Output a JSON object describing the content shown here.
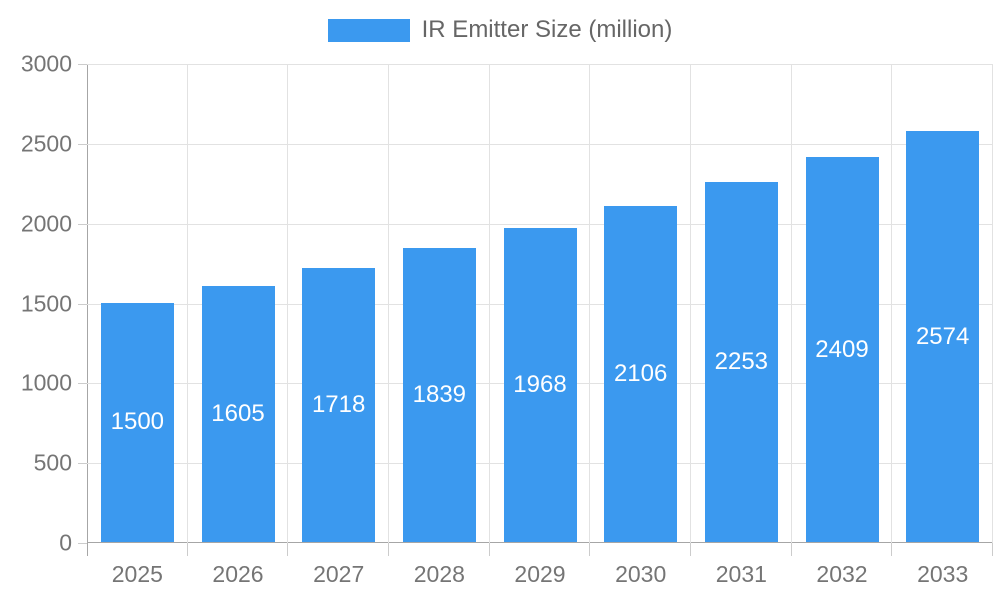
{
  "chart_data": {
    "type": "bar",
    "title": "",
    "categories": [
      "2025",
      "2026",
      "2027",
      "2028",
      "2029",
      "2030",
      "2031",
      "2032",
      "2033"
    ],
    "series": [
      {
        "name": "IR Emitter Size (million)",
        "values": [
          1500,
          1605,
          1718,
          1839,
          1968,
          2106,
          2253,
          2409,
          2574
        ]
      }
    ],
    "xlabel": "",
    "ylabel": "",
    "ylim": [
      0,
      3000
    ],
    "yticks": [
      0,
      500,
      1000,
      1500,
      2000,
      2500,
      3000
    ],
    "grid": true,
    "legend_position": "top-center",
    "value_labels": "inside-center",
    "colors": {
      "bar": "#3b99ef",
      "value_label": "#ffffff",
      "axis_text": "#757575",
      "legend_text": "#666666",
      "gridline": "#e2e2e2",
      "axis_line": "#a6a6a6",
      "background": "#ffffff"
    }
  }
}
